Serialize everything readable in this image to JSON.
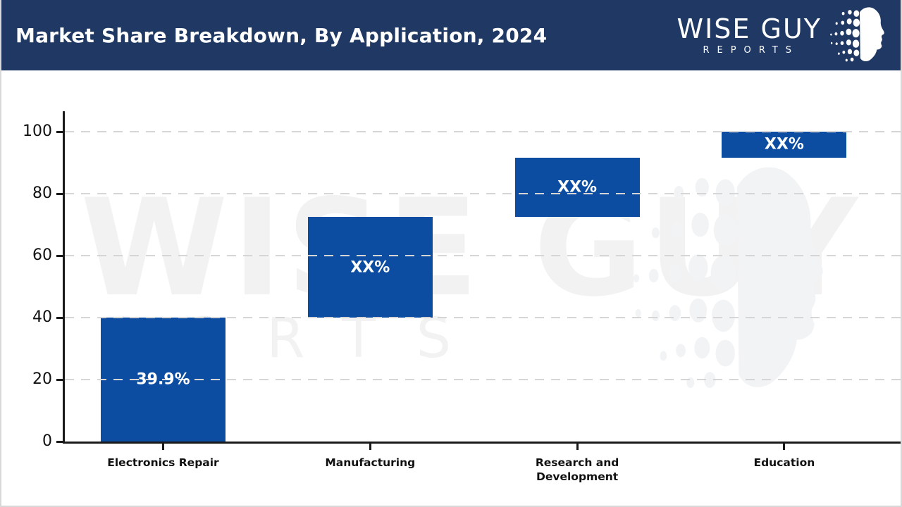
{
  "header": {
    "title": "Market Share Breakdown, By Application, 2024",
    "logo": {
      "line1": "WISE GUY",
      "line2": "REPORTS"
    }
  },
  "watermark": {
    "line1": "WISE GUY",
    "line2": "PORTS"
  },
  "chart_data": {
    "type": "bar",
    "subtype": "waterfall",
    "title": "Market Share Breakdown, By Application, 2024",
    "categories": [
      "Electronics Repair",
      "Manufacturing",
      "Research and Development",
      "Education"
    ],
    "segments": [
      {
        "category": "Electronics Repair",
        "start": 0,
        "end": 39.9,
        "label": "39.9%"
      },
      {
        "category": "Manufacturing",
        "start": 39.9,
        "end": 72.4,
        "label": "XX%"
      },
      {
        "category": "Research and Development",
        "start": 72.4,
        "end": 91.7,
        "label": "XX%"
      },
      {
        "category": "Education",
        "start": 91.7,
        "end": 100,
        "label": "XX%"
      }
    ],
    "xlabel": "",
    "ylabel": "",
    "yticks": [
      0,
      20,
      40,
      60,
      80,
      100
    ],
    "ylim": [
      0,
      106
    ],
    "grid": "horizontal-dashed",
    "legend": null,
    "colors": {
      "header_bg": "#1f3864",
      "bar": "#0c4da2",
      "bar_label": "#ffffff",
      "grid": "#d6d6d6",
      "axis": "#1a1a1a",
      "tick_text": "#111111",
      "watermark": "#f2f2f2"
    }
  }
}
